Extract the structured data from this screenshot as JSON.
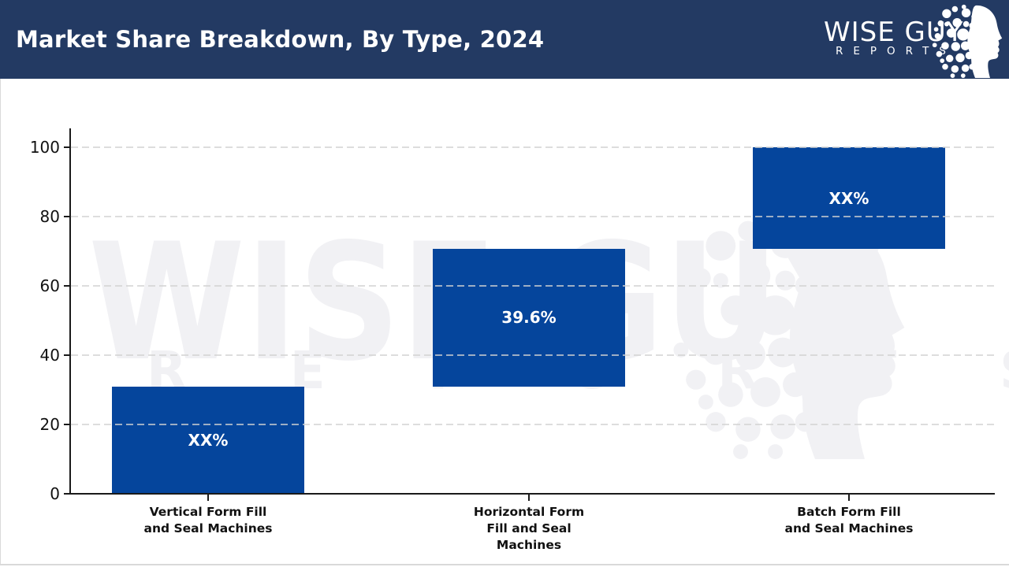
{
  "header": {
    "title": "Market Share Breakdown, By Type, 2024",
    "logo": {
      "brand_top": "WISE GUY",
      "brand_bottom": "REPORTS"
    }
  },
  "watermark": {
    "brand_top": "WISE GUY",
    "brand_bottom": "R E P O R T S"
  },
  "colors": {
    "page_bg": "#FFFFFF",
    "header_bg": "#233A63",
    "title_text": "#FFFFFF",
    "bar": "#05459C",
    "bar_label_text": "#FFFFFF",
    "axis": "#1A1A1A",
    "tick_label": "#111111",
    "grid_dash": "rgba(210,210,210,0.75)",
    "watermark": "#F1F1F4",
    "bottom_rule": "#D9D9D9"
  },
  "chart_data": {
    "type": "bar",
    "subtype": "waterfall-segment",
    "title": "Market Share Breakdown, By Type, 2024",
    "categories": [
      "Vertical Form Fill and Seal Machines",
      "Horizontal Form Fill and Seal Machines",
      "Batch Form Fill and Seal Machines"
    ],
    "bars": [
      {
        "category": "Vertical Form Fill and Seal Machines",
        "label": "XX%",
        "start": 0,
        "end": 31,
        "height": 31
      },
      {
        "category": "Horizontal Form Fill and Seal Machines",
        "label": "39.6%",
        "start": 31,
        "end": 70.6,
        "height": 39.6
      },
      {
        "category": "Batch Form Fill and Seal Machines",
        "label": "XX%",
        "start": 70.6,
        "end": 100,
        "height": 29.4
      }
    ],
    "x_tick_labels": [
      "Vertical Form Fill\nand Seal Machines",
      "Horizontal Form\nFill and Seal\nMachines",
      "Batch Form Fill\nand Seal Machines"
    ],
    "yticks": [
      0,
      20,
      40,
      60,
      80,
      100
    ],
    "ylim": [
      0,
      105
    ],
    "xlabel": "",
    "ylabel": "",
    "grid": "horizontal-dashed",
    "legend": "none"
  }
}
